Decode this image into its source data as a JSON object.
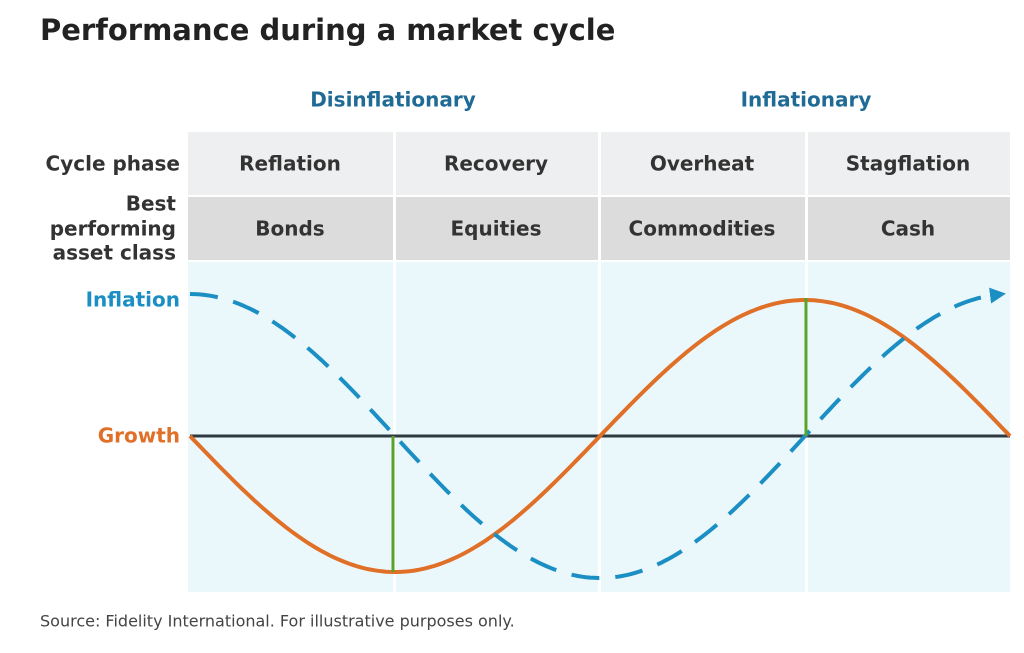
{
  "header": {
    "title": "Performance during a market cycle"
  },
  "groups": [
    "Disinflationary",
    "Inflationary"
  ],
  "table": {
    "row_labels": [
      "Cycle phase",
      "Best performing asset class"
    ],
    "row_label_lines": [
      "Best",
      "performing",
      "asset class"
    ],
    "phases": [
      "Reflation",
      "Recovery",
      "Overheat",
      "Stagflation"
    ],
    "asset_classes": [
      "Bonds",
      "Equities",
      "Commodities",
      "Cash"
    ]
  },
  "curves": {
    "inflation": "Inflation",
    "growth": "Growth"
  },
  "footer": {
    "source": "Source: Fidelity International. For illustrative purposes only."
  }
}
